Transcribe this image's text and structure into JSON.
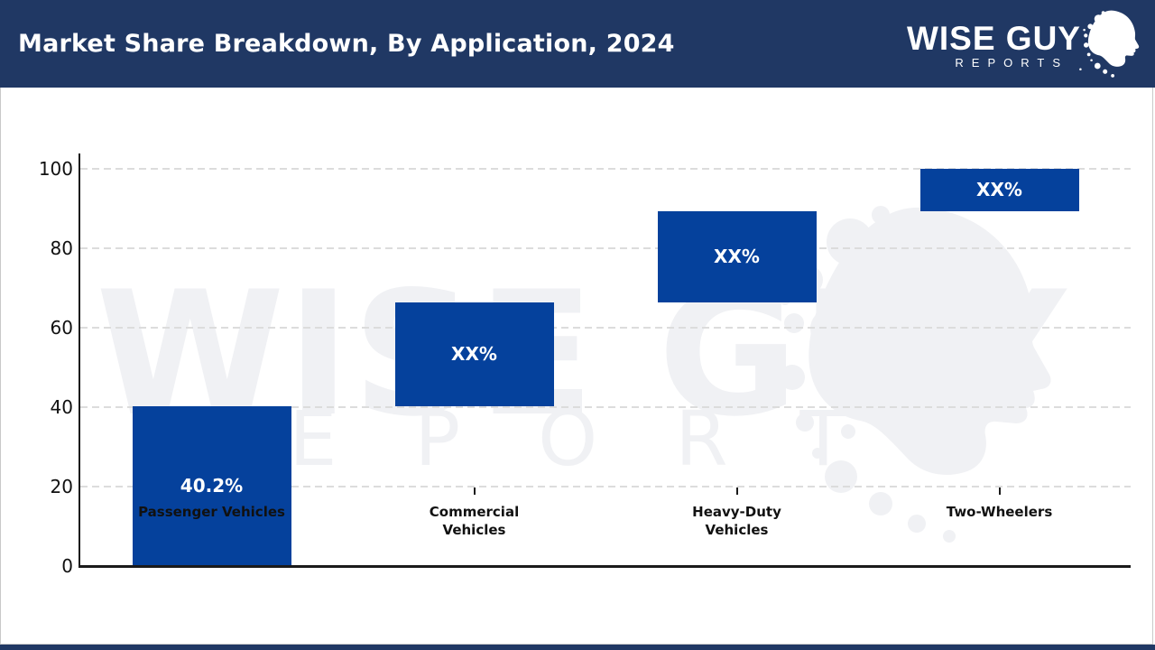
{
  "header": {
    "title": "Market Share Breakdown, By Application, 2024",
    "bg_color": "#203864"
  },
  "logo": {
    "wordmark": "WISE GUY",
    "subtext": "REPORTS"
  },
  "watermark": {
    "line1": "WISE GUY",
    "line2": "REPORTS"
  },
  "chart_data": {
    "type": "bar",
    "subtype": "waterfall-floating-bars",
    "title": "Market Share Breakdown, By Application, 2024",
    "categories": [
      "Passenger Vehicles",
      "Commercial\nVehicles",
      "Heavy-Duty\nVehicles",
      "Two-Wheelers"
    ],
    "segments": [
      {
        "category": "Passenger Vehicles",
        "start": 0,
        "end": 40.2,
        "label": "40.2%"
      },
      {
        "category": "Commercial Vehicles",
        "start": 40.2,
        "end": 66.3,
        "label": "XX%"
      },
      {
        "category": "Heavy-Duty Vehicles",
        "start": 66.3,
        "end": 89.3,
        "label": "XX%"
      },
      {
        "category": "Two-Wheelers",
        "start": 89.3,
        "end": 100,
        "label": "XX%"
      }
    ],
    "ylim": [
      0,
      100
    ],
    "yticks": [
      0,
      20,
      40,
      60,
      80,
      100
    ],
    "xlabel": "",
    "ylabel": "",
    "grid": "horizontal-dashed",
    "legend": "none",
    "bar_color": "#05419c",
    "axis_color": "#1a1a1a",
    "gridline_color": "#dcdcdc"
  }
}
